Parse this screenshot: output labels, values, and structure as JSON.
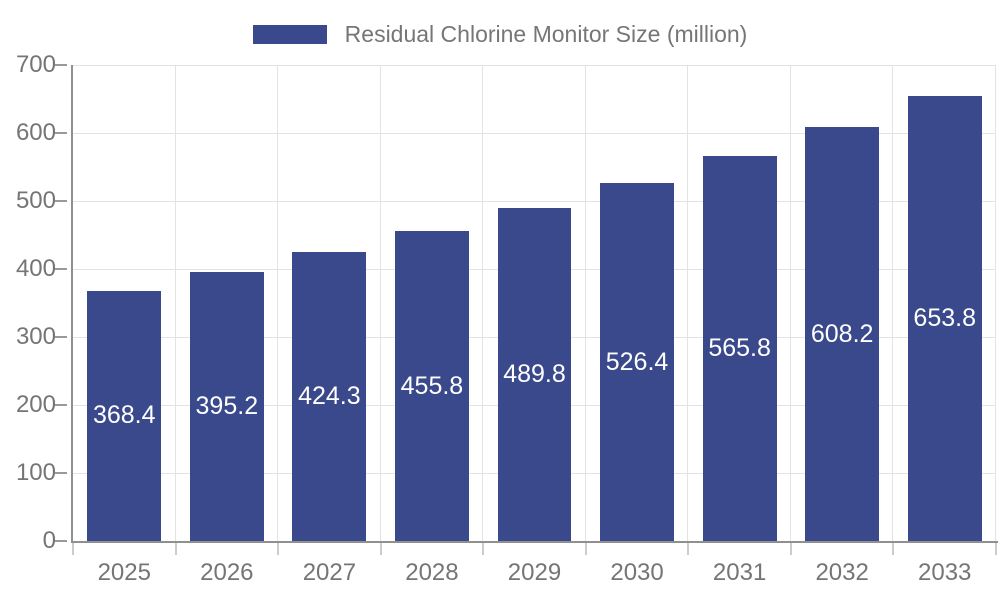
{
  "legend": {
    "label": "Residual Chlorine Monitor Size (million)"
  },
  "chart_data": {
    "type": "bar",
    "title": "Residual Chlorine Monitor Size (million)",
    "categories": [
      "2025",
      "2026",
      "2027",
      "2028",
      "2029",
      "2030",
      "2031",
      "2032",
      "2033"
    ],
    "values": [
      368.4,
      395.2,
      424.3,
      455.8,
      489.8,
      526.4,
      565.8,
      608.2,
      653.8
    ],
    "value_labels": [
      "368.4",
      "395.2",
      "424.3",
      "455.8",
      "489.8",
      "526.4",
      "565.8",
      "608.2",
      "653.8"
    ],
    "xlabel": "",
    "ylabel": "",
    "ylim": [
      0,
      700
    ],
    "ytick_step": 100,
    "yticks": [
      "0",
      "100",
      "200",
      "300",
      "400",
      "500",
      "600",
      "700"
    ],
    "grid": true,
    "legend_position": "top-center",
    "bar_color": "#39498B"
  },
  "colors": {
    "background": "#ffffff",
    "bar": "#39498B",
    "axis_line": "#909090",
    "gridline": "#e3e3e3",
    "y_axis_tick": "#999999",
    "x_axis_tick": "#cccccc",
    "tick_label_text": "#757575",
    "legend_text": "#767676",
    "value_label_text": "#ffffff"
  }
}
